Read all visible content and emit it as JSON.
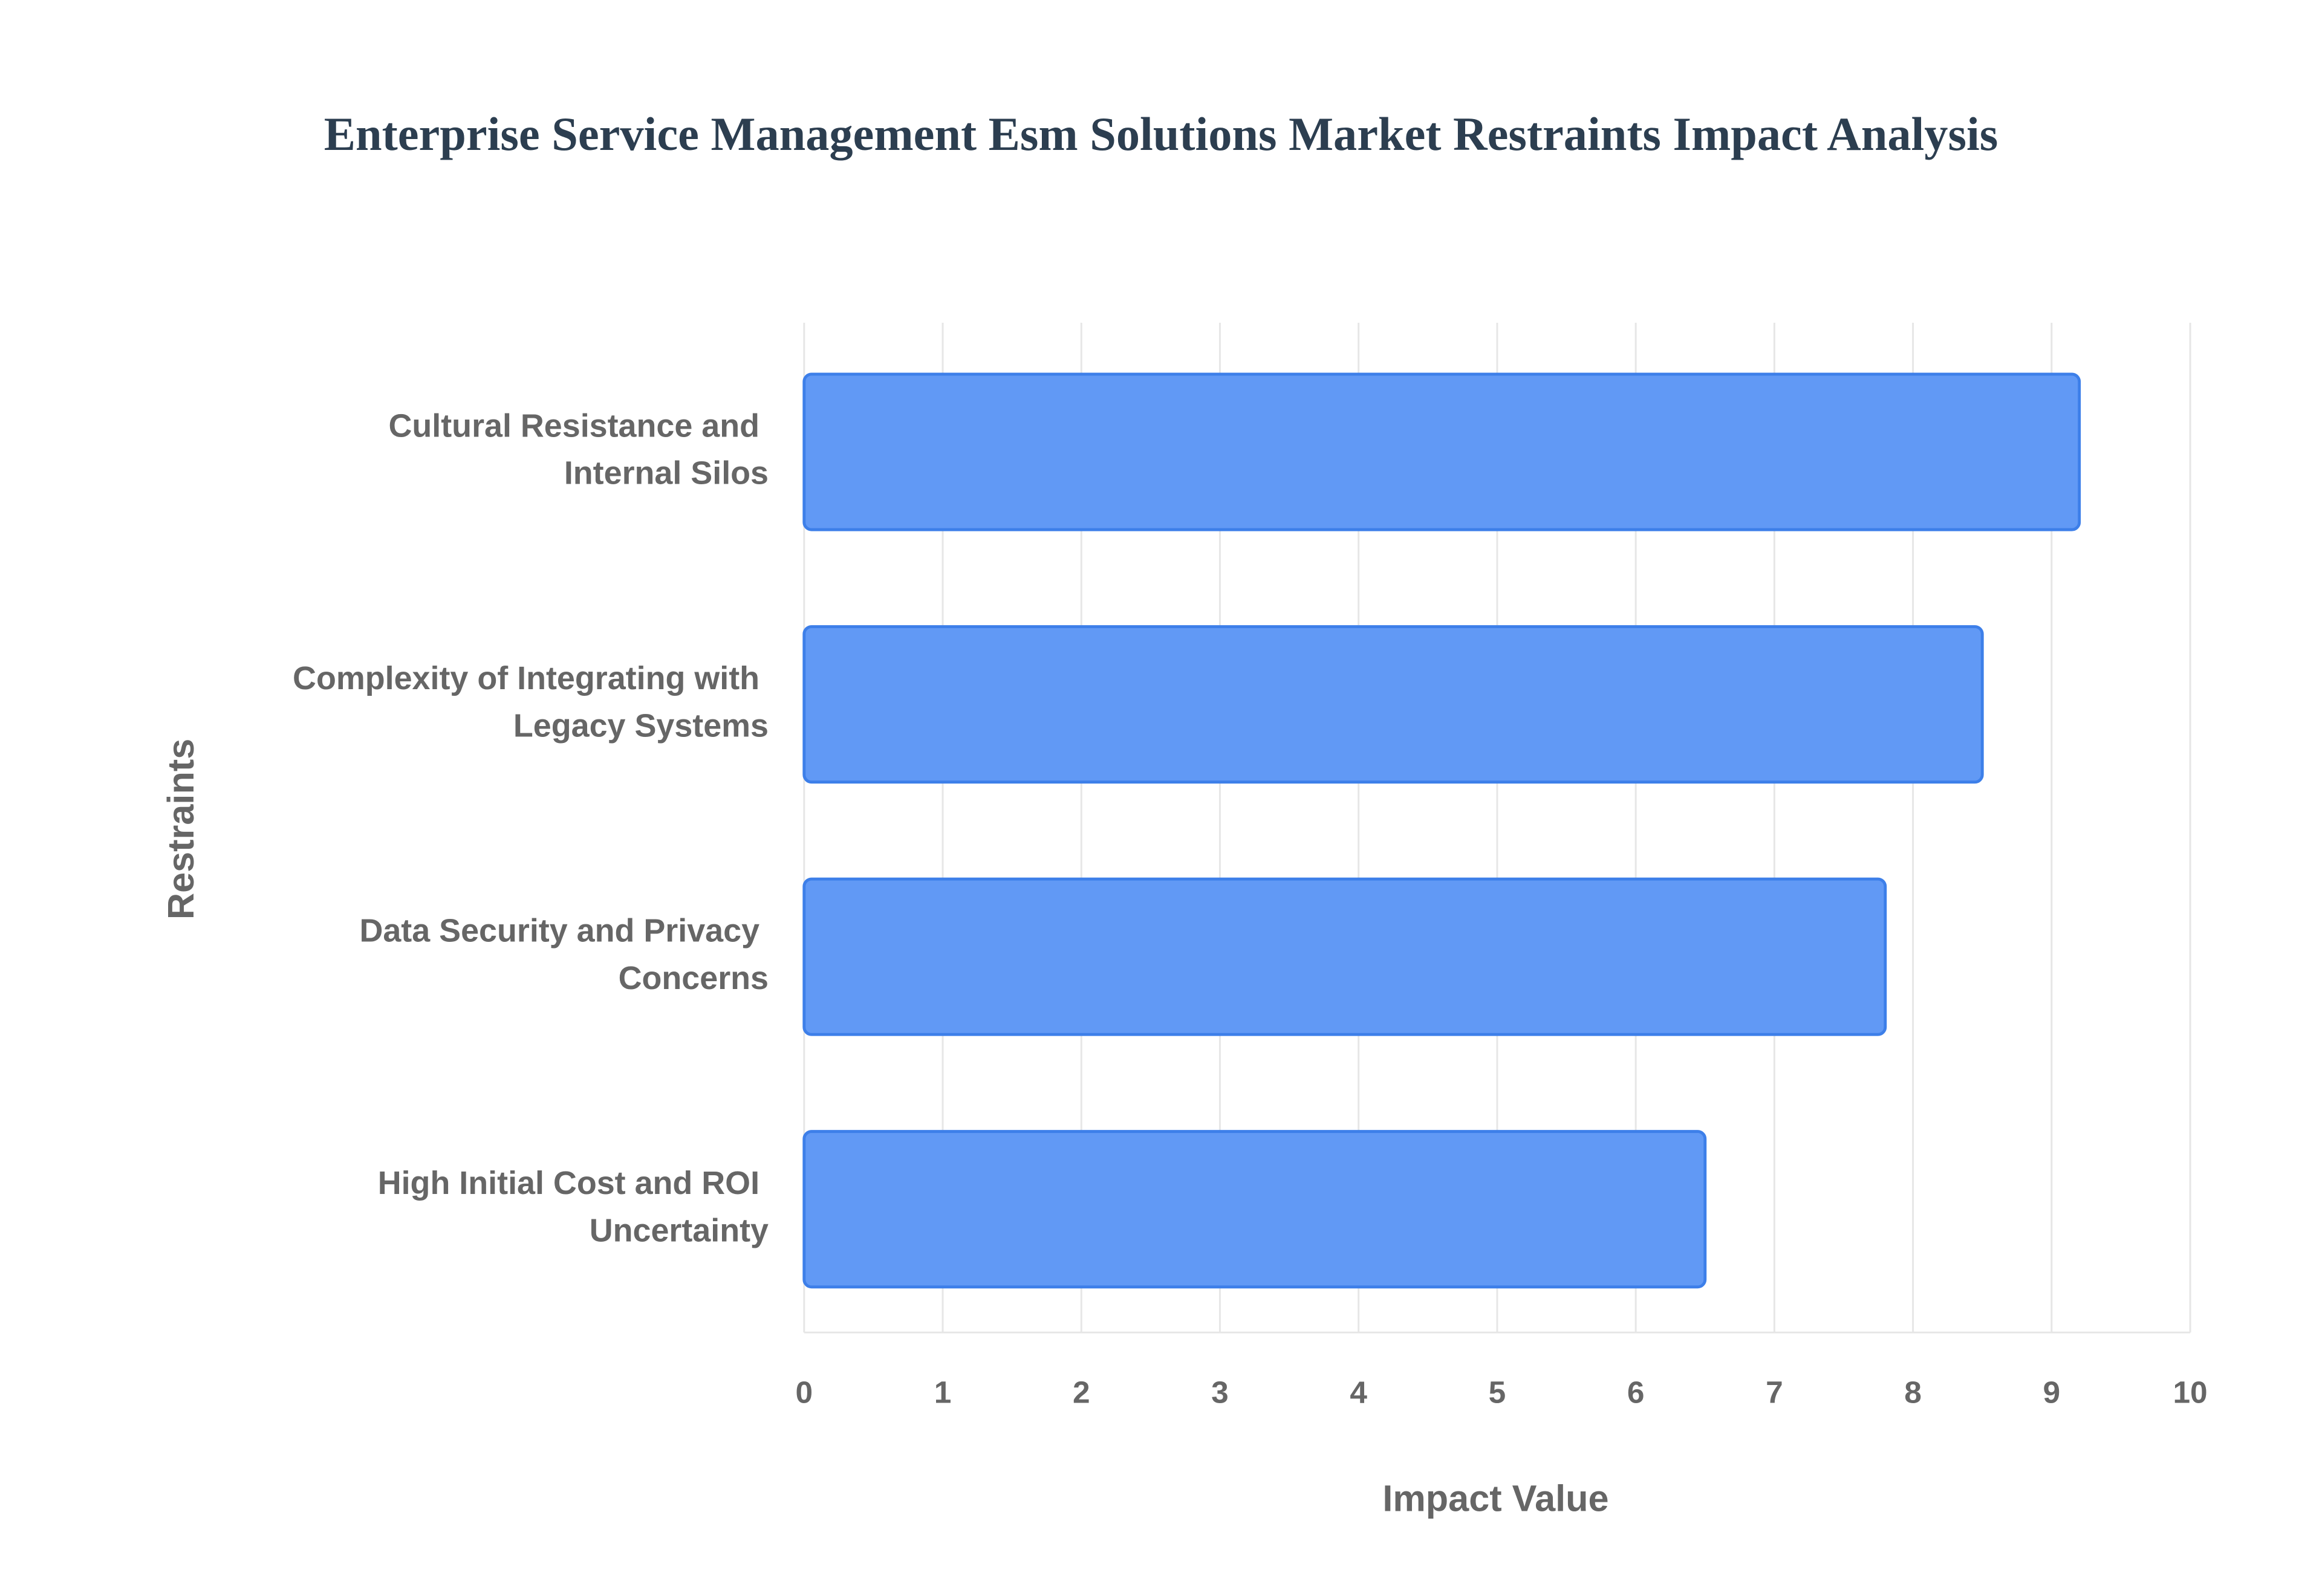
{
  "chart_data": {
    "type": "bar",
    "orientation": "horizontal",
    "title": "Enterprise Service Management Esm Solutions Market Restraints Impact Analysis",
    "x_label": "Impact Value",
    "y_label": "Restraints",
    "categories": [
      "Cultural Resistance and Internal Silos",
      "Complexity of Integrating with Legacy Systems",
      "Data Security and Privacy Concerns",
      "High Initial Cost and ROI Uncertainty"
    ],
    "values": [
      9.2,
      8.5,
      7.8,
      6.5
    ],
    "color": "#6199f5",
    "xlim": [
      0,
      10
    ],
    "xticks": [
      0,
      1,
      2,
      3,
      4,
      5,
      6,
      7,
      8,
      9,
      10
    ],
    "grid": true
  }
}
